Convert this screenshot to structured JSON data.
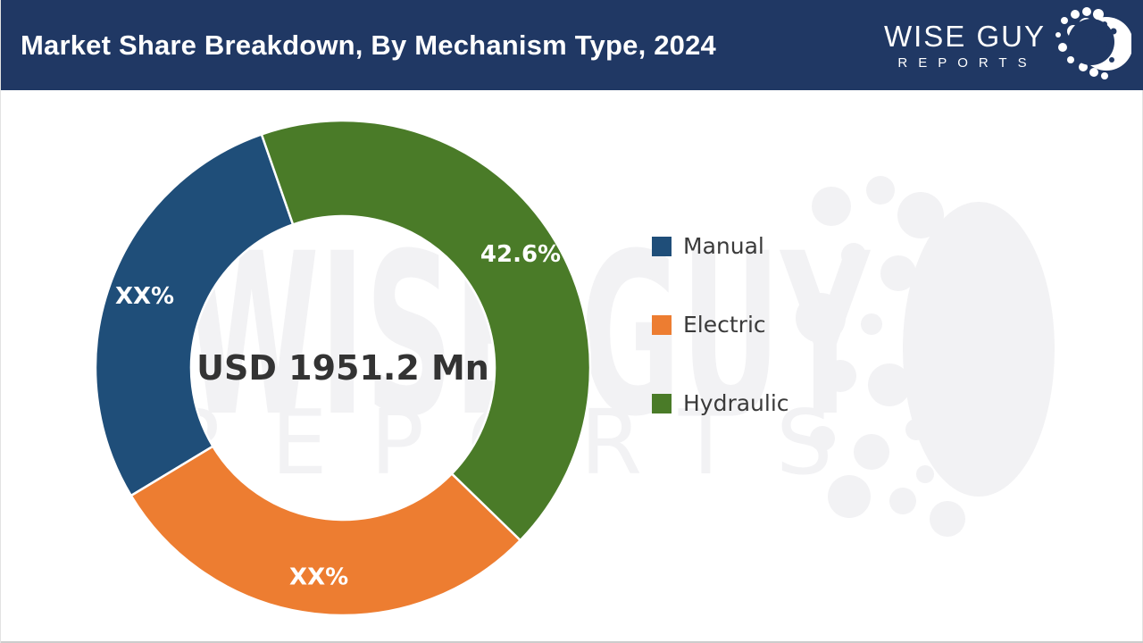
{
  "header": {
    "title": "Market Share Breakdown, By Mechanism Type, 2024",
    "logo": {
      "line1": "WISE GUY",
      "line2": "REPORTS"
    }
  },
  "watermark": {
    "line1": "WISE GUY",
    "line2": "REPORTS"
  },
  "chart_data": {
    "type": "pie",
    "variant": "donut",
    "title": "Market Share Breakdown, By Mechanism Type, 2024",
    "center_label": "USD 1951.2 Mn",
    "legend_position": "right",
    "direction": "counterclockwise",
    "start_angle_deg": 109.2,
    "series": [
      {
        "name": "Manual",
        "value": 28.3,
        "display": "XX%",
        "color": "#1F4E79"
      },
      {
        "name": "Electric",
        "value": 29.1,
        "display": "XX%",
        "color": "#ED7D31"
      },
      {
        "name": "Hydraulic",
        "value": 42.6,
        "display": "42.6%",
        "color": "#4A7B28"
      }
    ]
  },
  "colors": {
    "header_bg": "#203864",
    "manual": "#1F4E79",
    "electric": "#ED7D31",
    "hydraulic": "#4A7B28",
    "center_text": "#333333",
    "legend_text": "#3a3a3a"
  }
}
